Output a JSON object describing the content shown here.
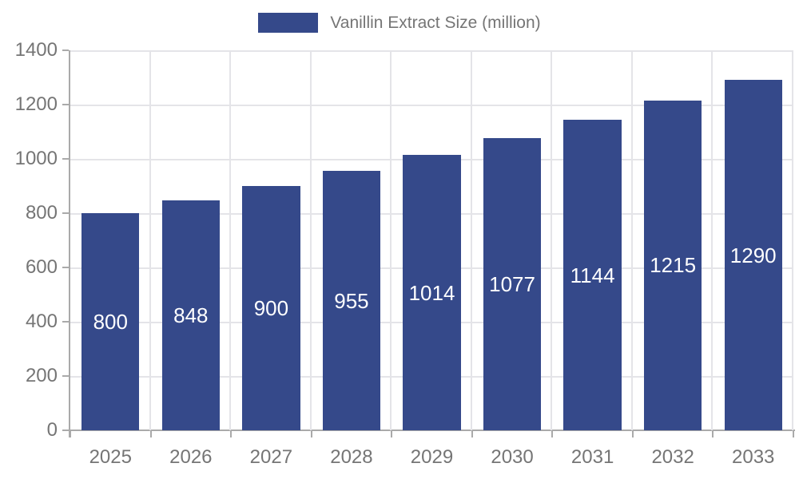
{
  "chart_data": {
    "type": "bar",
    "legend_position": "top",
    "series": [
      {
        "name": "Vanillin Extract Size (million)",
        "values": [
          800,
          848,
          900,
          955,
          1014,
          1077,
          1144,
          1215,
          1290
        ]
      }
    ],
    "categories": [
      "2025",
      "2026",
      "2027",
      "2028",
      "2029",
      "2030",
      "2031",
      "2032",
      "2033"
    ],
    "xlabel": "",
    "ylabel": "",
    "ylim": [
      0,
      1400
    ],
    "yticks": [
      0,
      200,
      400,
      600,
      800,
      1000,
      1200,
      1400
    ],
    "grid": true,
    "bar_label_position": "inside-middle",
    "colors": {
      "bar": "#35498a",
      "bar_label_text": "#ffffff",
      "axis_line": "#aaaaaa",
      "gridline": "#e4e4e8",
      "tick_label_text": "#757575",
      "legend_text": "#757575",
      "background": "#ffffff"
    }
  }
}
